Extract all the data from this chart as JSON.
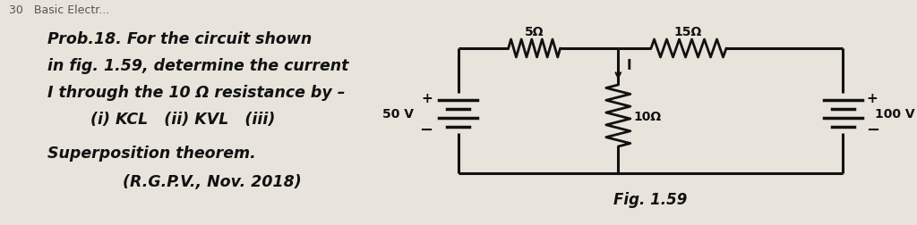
{
  "bg_color": "#c8c2b8",
  "paper_color": "#e8e4dc",
  "text_color": "#111111",
  "title_line1": "Prob.18. For the circuit shown",
  "title_line2": "in fig. 1.59, determine the current",
  "title_line3": "I through the 10 Ω resistance by –",
  "title_line4": "        (i) KCL   (ii) KVL   (iii)",
  "title_line5": "Superposition theorem.",
  "title_line6": "              (R.G.P.V., Nov. 2018)",
  "fig_label": "Fig. 1.59",
  "r1_label": "5Ω",
  "r2_label": "15Ω",
  "r3_label": "10Ω",
  "v1_label": "50 V",
  "v2_label": "100 V",
  "I_label": "I",
  "font_size_text": 12.5,
  "font_size_labels": 10
}
